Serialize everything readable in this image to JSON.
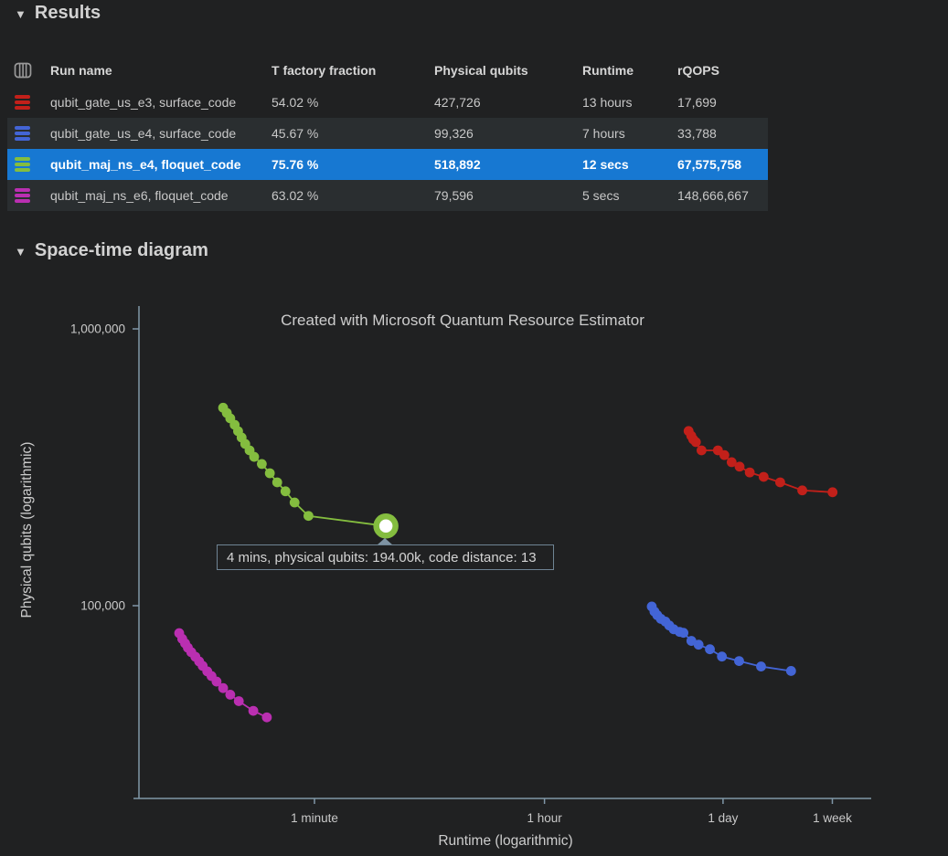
{
  "results": {
    "collapse_icon": "▼",
    "title": "Results",
    "table": {
      "selection_color": "#1778d2",
      "columns": {
        "run_name": "Run name",
        "t_factory_fraction": "T factory fraction",
        "physical_qubits": "Physical qubits",
        "runtime": "Runtime",
        "rqops": "rQOPS"
      },
      "rows": [
        {
          "series_color": "#c2201a",
          "run_name": "qubit_gate_us_e3, surface_code",
          "t_factory_fraction": "54.02 %",
          "physical_qubits": "427,726",
          "runtime": "13 hours",
          "rqops": "17,699",
          "selected": false,
          "striped": false
        },
        {
          "series_color": "#4365d6",
          "run_name": "qubit_gate_us_e4, surface_code",
          "t_factory_fraction": "45.67 %",
          "physical_qubits": "99,326",
          "runtime": "7 hours",
          "rqops": "33,788",
          "selected": false,
          "striped": true
        },
        {
          "series_color": "#84bd3f",
          "run_name": "qubit_maj_ns_e4, floquet_code",
          "t_factory_fraction": "75.76 %",
          "physical_qubits": "518,892",
          "runtime": "12 secs",
          "rqops": "67,575,758",
          "selected": true,
          "striped": false
        },
        {
          "series_color": "#ba2fb1",
          "run_name": "qubit_maj_ns_e6, floquet_code",
          "t_factory_fraction": "63.02 %",
          "physical_qubits": "79,596",
          "runtime": "5 secs",
          "rqops": "148,666,667",
          "selected": false,
          "striped": true
        }
      ]
    }
  },
  "diagram": {
    "collapse_icon": "▼",
    "title": "Space-time diagram"
  },
  "chart_data": {
    "type": "scatter",
    "title": "Created with Microsoft Quantum Resource Estimator",
    "xlabel": "Runtime (logarithmic)",
    "ylabel": "Physical qubits (logarithmic)",
    "x_scale": "log",
    "y_scale": "log",
    "x_unit": "seconds",
    "y_unit": "physical qubits",
    "axis_color": "#8097a8",
    "x_ticks": [
      {
        "label": "1 minute",
        "seconds": 60
      },
      {
        "label": "1 hour",
        "seconds": 3600
      },
      {
        "label": "1 day",
        "seconds": 86400
      },
      {
        "label": "1 week",
        "seconds": 604800
      }
    ],
    "y_ticks": [
      {
        "label": "1,000,000",
        "value": 1000000
      },
      {
        "label": "100,000",
        "value": 100000
      }
    ],
    "series": [
      {
        "name": "qubit_gate_us_e3, surface_code",
        "color": "#c2201a",
        "points": [
          [
            46800,
            427726
          ],
          [
            49100,
            411000
          ],
          [
            50800,
            399000
          ],
          [
            53300,
            390000
          ],
          [
            58900,
            364000
          ],
          [
            78900,
            364000
          ],
          [
            88500,
            350000
          ],
          [
            100700,
            330000
          ],
          [
            116000,
            318000
          ],
          [
            139000,
            303000
          ],
          [
            178000,
            292000
          ],
          [
            239000,
            279000
          ],
          [
            354000,
            261000
          ],
          [
            607000,
            257000
          ]
        ]
      },
      {
        "name": "qubit_gate_us_e4, surface_code",
        "color": "#4365d6",
        "points": [
          [
            24300,
            99326
          ],
          [
            25500,
            95200
          ],
          [
            26800,
            92400
          ],
          [
            28600,
            89600
          ],
          [
            31000,
            87600
          ],
          [
            33200,
            84800
          ],
          [
            35900,
            82200
          ],
          [
            39900,
            80400
          ],
          [
            42700,
            79800
          ],
          [
            49200,
            74600
          ],
          [
            55900,
            72300
          ],
          [
            68400,
            69600
          ],
          [
            84700,
            65500
          ],
          [
            115000,
            63100
          ],
          [
            170000,
            60300
          ],
          [
            290000,
            58100
          ]
        ]
      },
      {
        "name": "qubit_maj_ns_e4, floquet_code",
        "color": "#84bd3f",
        "points": [
          [
            11.8,
            518892
          ],
          [
            12.6,
            497000
          ],
          [
            13.4,
            475000
          ],
          [
            14.5,
            450000
          ],
          [
            15.4,
            427000
          ],
          [
            16.4,
            405000
          ],
          [
            17.5,
            384000
          ],
          [
            18.9,
            364000
          ],
          [
            20.5,
            345000
          ],
          [
            23.5,
            325000
          ],
          [
            27.1,
            301000
          ],
          [
            30.9,
            279000
          ],
          [
            35.8,
            259000
          ],
          [
            42.1,
            236000
          ],
          [
            53.9,
            211000
          ],
          [
            214,
            194000
          ]
        ]
      },
      {
        "name": "qubit_maj_ns_e6, floquet_code",
        "color": "#ba2fb1",
        "points": [
          [
            5.4,
            79596
          ],
          [
            5.7,
            75900
          ],
          [
            6.0,
            73100
          ],
          [
            6.3,
            70500
          ],
          [
            6.7,
            67900
          ],
          [
            7.2,
            65400
          ],
          [
            7.7,
            62900
          ],
          [
            8.2,
            60600
          ],
          [
            8.9,
            57900
          ],
          [
            9.6,
            55700
          ],
          [
            10.5,
            53200
          ],
          [
            11.8,
            50400
          ],
          [
            13.4,
            47700
          ],
          [
            15.6,
            45200
          ],
          [
            20.2,
            41700
          ],
          [
            25.7,
            39500
          ]
        ]
      }
    ],
    "highlight": {
      "series": "qubit_maj_ns_e4, floquet_code",
      "point_index": 15,
      "tooltip": "4 mins, physical qubits: 194.00k, code distance: 13"
    }
  }
}
